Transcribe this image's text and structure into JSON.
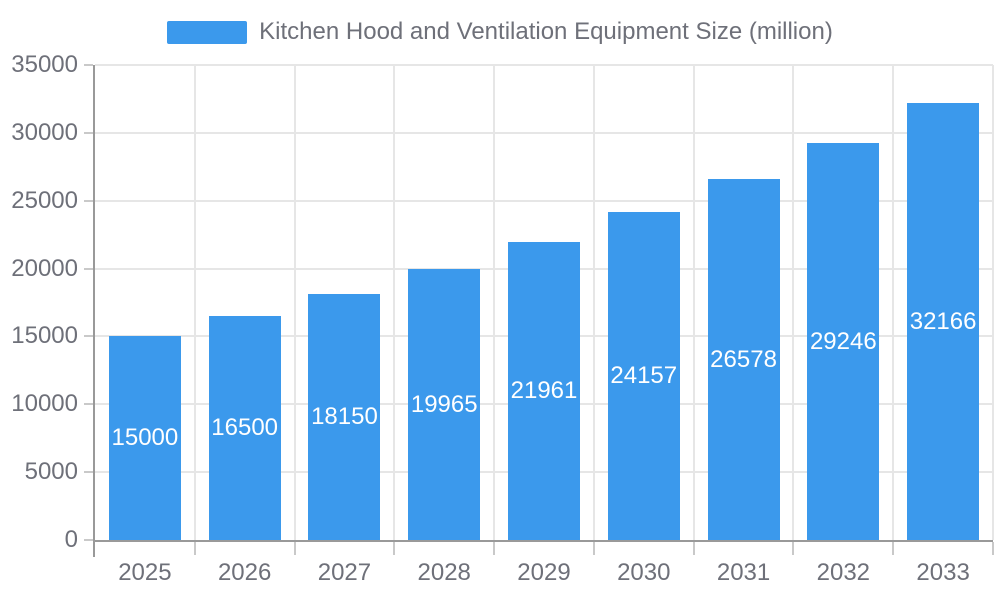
{
  "legend": {
    "label": "Kitchen Hood and Ventilation Equipment Size (million)"
  },
  "chart_data": {
    "type": "bar",
    "title": "Kitchen Hood and Ventilation Equipment Size (million)",
    "series_name": "Kitchen Hood and Ventilation Equipment Size (million)",
    "categories": [
      "2025",
      "2026",
      "2027",
      "2028",
      "2029",
      "2030",
      "2031",
      "2032",
      "2033"
    ],
    "values": [
      15000,
      16500,
      18150,
      19965,
      21961,
      24157,
      26578,
      29246,
      32166
    ],
    "bar_value_labels": [
      "15000",
      "16500",
      "18150",
      "19965",
      "21961",
      "24157",
      "26578",
      "29246",
      "32166"
    ],
    "xlabel": "",
    "ylabel": "",
    "ylim": [
      0,
      35000
    ],
    "ytick_step": 5000,
    "yticks": [
      0,
      5000,
      10000,
      15000,
      20000,
      25000,
      30000,
      35000
    ],
    "grid": true,
    "legend_position": "top-center",
    "value_label_position": "inside-center",
    "colors": {
      "bar": "#3B99EC",
      "value_label": "#FFFFFF",
      "axis_text": "#6E7079",
      "legend_text": "#6E7079",
      "grid_line": "#E6E6E6",
      "axis_line": "#999999",
      "tick_mark": "#C9C9C9",
      "background": "#FFFFFF"
    }
  }
}
